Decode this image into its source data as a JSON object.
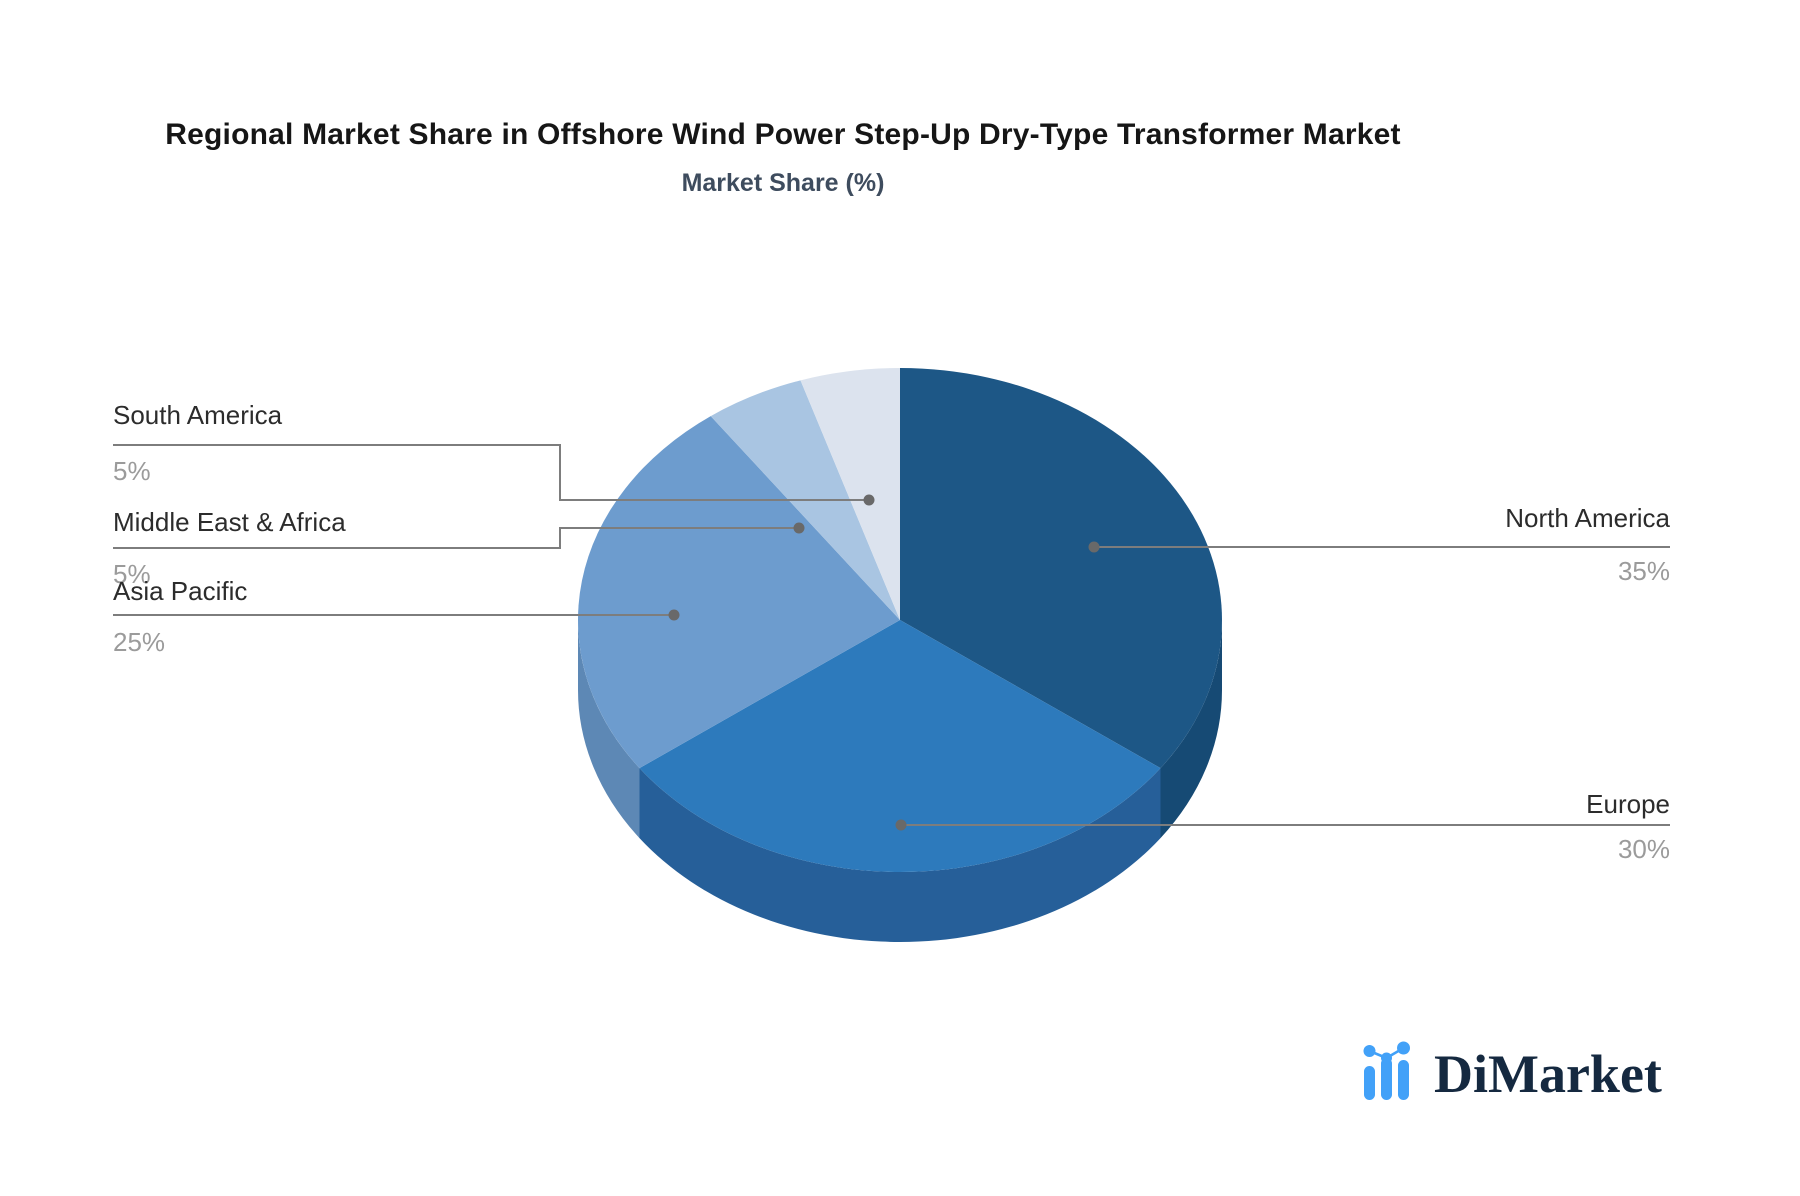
{
  "header": {
    "title": "Regional Market Share in Offshore Wind Power Step-Up Dry-Type Transformer Market",
    "subtitle": "Market Share (%)"
  },
  "chart_data": {
    "type": "pie",
    "style": "3d",
    "title": "Regional Market Share in Offshore Wind Power Step-Up Dry-Type Transformer Market",
    "subtitle": "Market Share (%)",
    "unit": "%",
    "start_angle_deg": 0,
    "direction": "clockwise",
    "legend_position": "none",
    "labeling": "leader-lines",
    "slices": [
      {
        "label": "North America",
        "value": 35,
        "value_label": "35%",
        "color": "#1d5786",
        "side_color": "#164a74"
      },
      {
        "label": "Europe",
        "value": 30,
        "value_label": "30%",
        "color": "#2d7abc",
        "side_color": "#265f99"
      },
      {
        "label": "Asia Pacific",
        "value": 25,
        "value_label": "25%",
        "color": "#6d9cce",
        "side_color": "#5d88b5"
      },
      {
        "label": "Middle East & Africa",
        "value": 5,
        "value_label": "5%",
        "color": "#a9c5e2",
        "side_color": "#8fadc9"
      },
      {
        "label": "South America",
        "value": 5,
        "value_label": "5%",
        "color": "#dce3ee",
        "side_color": "#b9c4d6"
      }
    ],
    "leader_line_color": "#7d7d7d",
    "leader_dot_color": "#696969"
  },
  "watermark": {
    "text": "DiMarket",
    "icon": "bar-chart-logo-icon"
  }
}
